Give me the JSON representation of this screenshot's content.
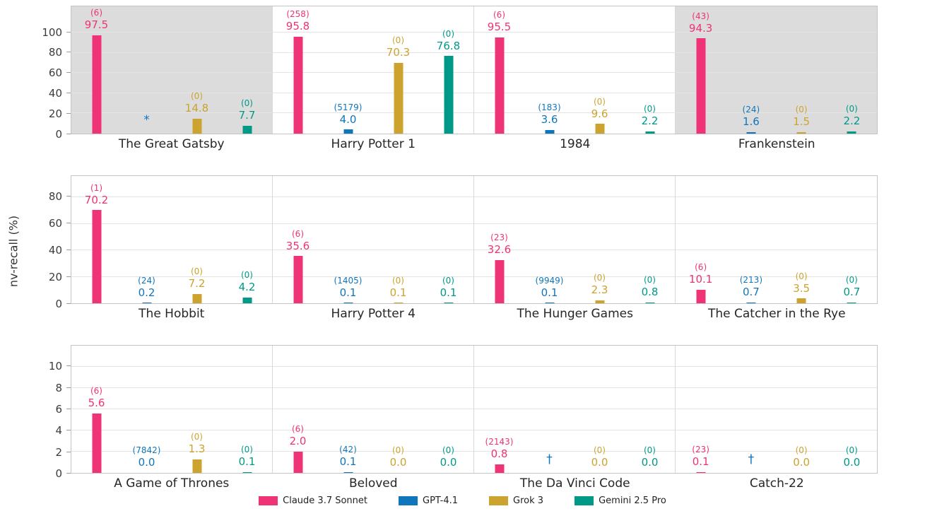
{
  "chart_data": {
    "type": "bar",
    "title": "",
    "ylabel": "nv-recall (%)",
    "grid": true,
    "legend_position": "bottom",
    "shaded_color": "#DCDCDC",
    "series": [
      {
        "name": "Claude 3.7 Sonnet",
        "color": "#EE3377"
      },
      {
        "name": "GPT-4.1",
        "color": "#1076BC"
      },
      {
        "name": "Grok 3",
        "color": "#CCA32E"
      },
      {
        "name": "Gemini 2.5 Pro",
        "color": "#009988"
      }
    ],
    "rows": [
      {
        "ymax": 126,
        "yticks": [
          0,
          20,
          40,
          60,
          80,
          100
        ],
        "groups": [
          {
            "label": "The Great Gatsby",
            "shaded": true,
            "bars": [
              {
                "count": "(6)",
                "value": 97.5,
                "display": "97.5"
              },
              {
                "marker": "*"
              },
              {
                "count": "(0)",
                "value": 14.8,
                "display": "14.8"
              },
              {
                "count": "(0)",
                "value": 7.7,
                "display": "7.7"
              }
            ]
          },
          {
            "label": "Harry Potter 1",
            "shaded": false,
            "bars": [
              {
                "count": "(258)",
                "value": 95.8,
                "display": "95.8"
              },
              {
                "count": "(5179)",
                "value": 4.0,
                "display": "4.0"
              },
              {
                "count": "(0)",
                "value": 70.3,
                "display": "70.3"
              },
              {
                "count": "(0)",
                "value": 76.8,
                "display": "76.8"
              }
            ]
          },
          {
            "label": "1984",
            "shaded": false,
            "bars": [
              {
                "count": "(6)",
                "value": 95.5,
                "display": "95.5"
              },
              {
                "count": "(183)",
                "value": 3.6,
                "display": "3.6"
              },
              {
                "count": "(0)",
                "value": 9.6,
                "display": "9.6"
              },
              {
                "count": "(0)",
                "value": 2.2,
                "display": "2.2"
              }
            ]
          },
          {
            "label": "Frankenstein",
            "shaded": true,
            "bars": [
              {
                "count": "(43)",
                "value": 94.3,
                "display": "94.3"
              },
              {
                "count": "(24)",
                "value": 1.6,
                "display": "1.6"
              },
              {
                "count": "(0)",
                "value": 1.5,
                "display": "1.5"
              },
              {
                "count": "(0)",
                "value": 2.2,
                "display": "2.2"
              }
            ]
          }
        ]
      },
      {
        "ymax": 96,
        "yticks": [
          0,
          20,
          40,
          60,
          80
        ],
        "groups": [
          {
            "label": "The Hobbit",
            "shaded": false,
            "bars": [
              {
                "count": "(1)",
                "value": 70.2,
                "display": "70.2"
              },
              {
                "count": "(24)",
                "value": 0.2,
                "display": "0.2"
              },
              {
                "count": "(0)",
                "value": 7.2,
                "display": "7.2"
              },
              {
                "count": "(0)",
                "value": 4.2,
                "display": "4.2"
              }
            ]
          },
          {
            "label": "Harry Potter 4",
            "shaded": false,
            "bars": [
              {
                "count": "(6)",
                "value": 35.6,
                "display": "35.6"
              },
              {
                "count": "(1405)",
                "value": 0.1,
                "display": "0.1"
              },
              {
                "count": "(0)",
                "value": 0.1,
                "display": "0.1"
              },
              {
                "count": "(0)",
                "value": 0.1,
                "display": "0.1"
              }
            ]
          },
          {
            "label": "The Hunger Games",
            "shaded": false,
            "bars": [
              {
                "count": "(23)",
                "value": 32.6,
                "display": "32.6"
              },
              {
                "count": "(9949)",
                "value": 0.1,
                "display": "0.1"
              },
              {
                "count": "(0)",
                "value": 2.3,
                "display": "2.3"
              },
              {
                "count": "(0)",
                "value": 0.8,
                "display": "0.8"
              }
            ]
          },
          {
            "label": "The Catcher in the Rye",
            "shaded": false,
            "bars": [
              {
                "count": "(6)",
                "value": 10.1,
                "display": "10.1"
              },
              {
                "count": "(213)",
                "value": 0.7,
                "display": "0.7"
              },
              {
                "count": "(0)",
                "value": 3.5,
                "display": "3.5"
              },
              {
                "count": "(0)",
                "value": 0.7,
                "display": "0.7"
              }
            ]
          }
        ]
      },
      {
        "ymax": 12,
        "yticks": [
          0,
          2,
          4,
          6,
          8,
          10
        ],
        "groups": [
          {
            "label": "A Game of Thrones",
            "shaded": false,
            "bars": [
              {
                "count": "(6)",
                "value": 5.6,
                "display": "5.6"
              },
              {
                "count": "(7842)",
                "value": 0.0,
                "display": "0.0"
              },
              {
                "count": "(0)",
                "value": 1.3,
                "display": "1.3"
              },
              {
                "count": "(0)",
                "value": 0.1,
                "display": "0.1"
              }
            ]
          },
          {
            "label": "Beloved",
            "shaded": false,
            "bars": [
              {
                "count": "(6)",
                "value": 2.0,
                "display": "2.0"
              },
              {
                "count": "(42)",
                "value": 0.1,
                "display": "0.1"
              },
              {
                "count": "(0)",
                "value": 0.0,
                "display": "0.0"
              },
              {
                "count": "(0)",
                "value": 0.0,
                "display": "0.0"
              }
            ]
          },
          {
            "label": "The Da Vinci Code",
            "shaded": false,
            "bars": [
              {
                "count": "(2143)",
                "value": 0.8,
                "display": "0.8"
              },
              {
                "marker": "†"
              },
              {
                "count": "(0)",
                "value": 0.0,
                "display": "0.0"
              },
              {
                "count": "(0)",
                "value": 0.0,
                "display": "0.0"
              }
            ]
          },
          {
            "label": "Catch-22",
            "shaded": false,
            "bars": [
              {
                "count": "(23)",
                "value": 0.1,
                "display": "0.1"
              },
              {
                "marker": "†"
              },
              {
                "count": "(0)",
                "value": 0.0,
                "display": "0.0"
              },
              {
                "count": "(0)",
                "value": 0.0,
                "display": "0.0"
              }
            ]
          }
        ]
      }
    ]
  }
}
